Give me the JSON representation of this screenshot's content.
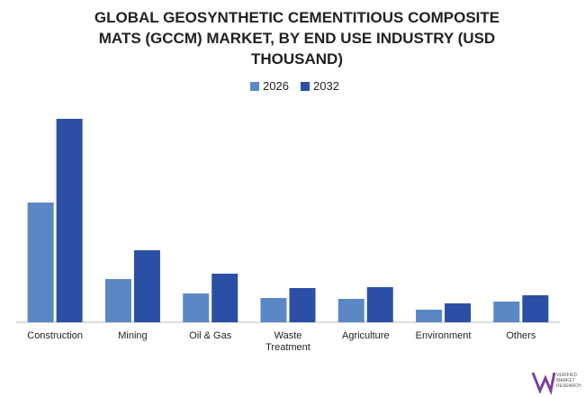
{
  "chart_data": {
    "type": "bar",
    "title": "GLOBAL GEOSYNTHETIC CEMENTITIOUS COMPOSITE MATS (GCCM) MARKET, BY END USE INDUSTRY (USD THOUSAND)",
    "categories": [
      "Construction",
      "Mining",
      "Oil & Gas",
      "Waste Treatment",
      "Agriculture",
      "Environment",
      "Others"
    ],
    "series": [
      {
        "name": "2026",
        "color": "#5b87c5",
        "values": [
          133,
          48,
          32,
          27,
          26,
          14,
          23
        ]
      },
      {
        "name": "2032",
        "color": "#2b4fa5",
        "values": [
          226,
          80,
          54,
          38,
          39,
          21,
          30
        ]
      }
    ],
    "legend": "top",
    "logo": "VERIFIED MARKET RESEARCH"
  }
}
